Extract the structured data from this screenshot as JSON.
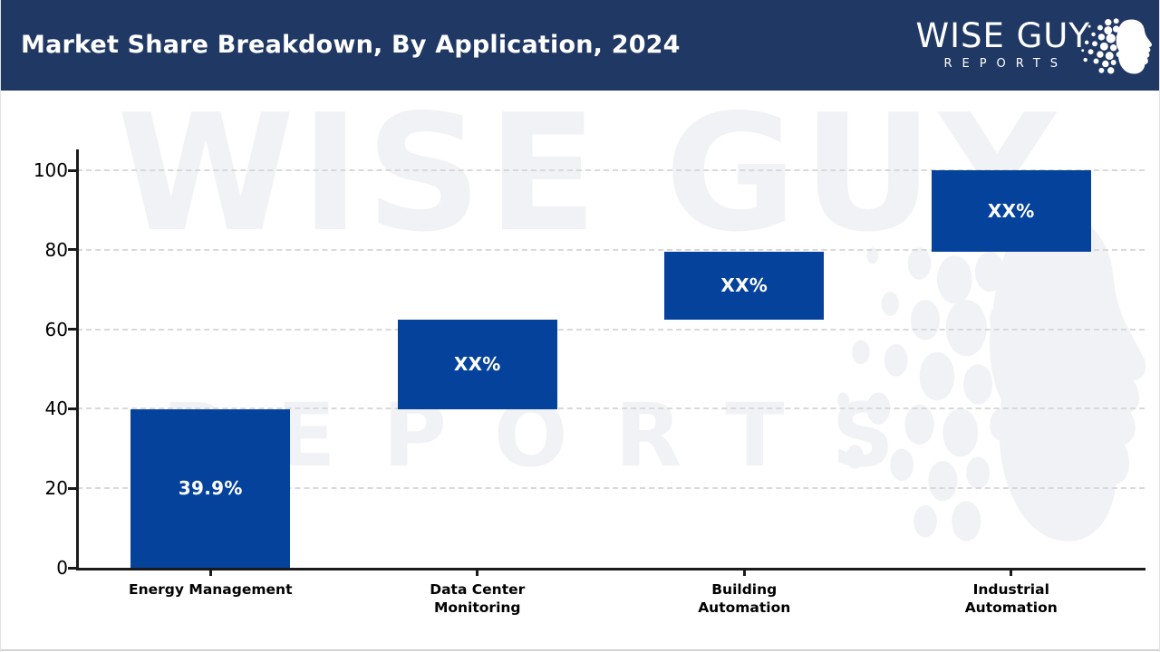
{
  "header": {
    "title": "Market Share Breakdown, By Application, 2024",
    "bg_color": "#203864",
    "logo": {
      "line1": "WISE GUY",
      "line2": "REPORTS"
    }
  },
  "watermark": {
    "line1": "WISE GUY",
    "line2": "REPORTS"
  },
  "colors": {
    "bar_fill": "#04429b",
    "header_navy": "#203864",
    "gridline": "#d9d9d9",
    "axis": "#1a1a1a",
    "bar_label_text": "#ffffff",
    "watermark_gray": "#f1f2f5"
  },
  "chart_data": {
    "type": "bar",
    "subtype": "waterfall",
    "title": "Market Share Breakdown, By Application, 2024",
    "xlabel": "",
    "ylabel": "",
    "ylim": [
      0,
      100
    ],
    "yticks": [
      0,
      20,
      40,
      60,
      80,
      100
    ],
    "grid": {
      "axis": "y",
      "style": "dashed"
    },
    "legend": "none",
    "categories": [
      "Energy Management",
      "Data Center Monitoring",
      "Building Automation",
      "Industrial Automation"
    ],
    "bars": [
      {
        "category": "Energy Management",
        "category_lines": [
          "Energy Management"
        ],
        "start": 0,
        "end": 39.9,
        "label": "39.9%"
      },
      {
        "category": "Data Center Monitoring",
        "category_lines": [
          "Data Center",
          "Monitoring"
        ],
        "start": 39.9,
        "end": 62.5,
        "label": "XX%"
      },
      {
        "category": "Building Automation",
        "category_lines": [
          "Building",
          "Automation"
        ],
        "start": 62.5,
        "end": 79.5,
        "label": "XX%"
      },
      {
        "category": "Industrial Automation",
        "category_lines": [
          "Industrial",
          "Automation"
        ],
        "start": 79.5,
        "end": 100,
        "label": "XX%"
      }
    ]
  }
}
